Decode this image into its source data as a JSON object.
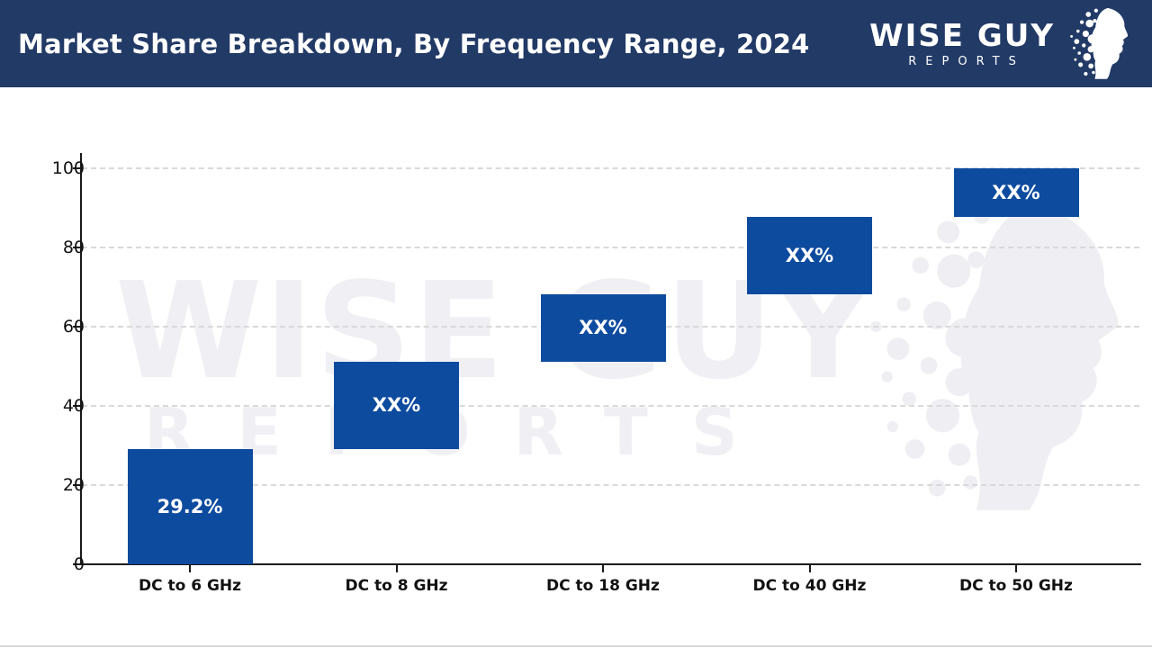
{
  "header": {
    "title": "Market Share Breakdown, By Frequency Range, 2024",
    "bg_color": "#223a66",
    "logo": {
      "wordmark": "WISE GUY",
      "subtext": "REPORTS"
    }
  },
  "watermark": {
    "line1": "WISE GUY",
    "line2": "REPORTS"
  },
  "chart_data": {
    "type": "bar",
    "subtype": "waterfall",
    "title": "Market Share Breakdown, By Frequency Range, 2024",
    "categories": [
      "DC to 6 GHz",
      "DC to 8 GHz",
      "DC to 18 GHz",
      "DC to 40 GHz",
      "DC to 50 GHz"
    ],
    "bars": [
      {
        "label": "29.2%",
        "start": 0,
        "end": 29.2
      },
      {
        "label": "XX%",
        "start": 29.2,
        "end": 51.2
      },
      {
        "label": "XX%",
        "start": 51.2,
        "end": 68.2
      },
      {
        "label": "XX%",
        "start": 68.2,
        "end": 87.7
      },
      {
        "label": "XX%",
        "start": 87.7,
        "end": 100
      }
    ],
    "ylim": [
      0,
      100
    ],
    "yticks": [
      0,
      20,
      40,
      60,
      80,
      100
    ],
    "grid": "horizontal-dashed",
    "legend": "none",
    "bar_color": "#0d4b9f",
    "bar_label_color": "#ffffff",
    "axis_color": "#1a1a1a"
  }
}
